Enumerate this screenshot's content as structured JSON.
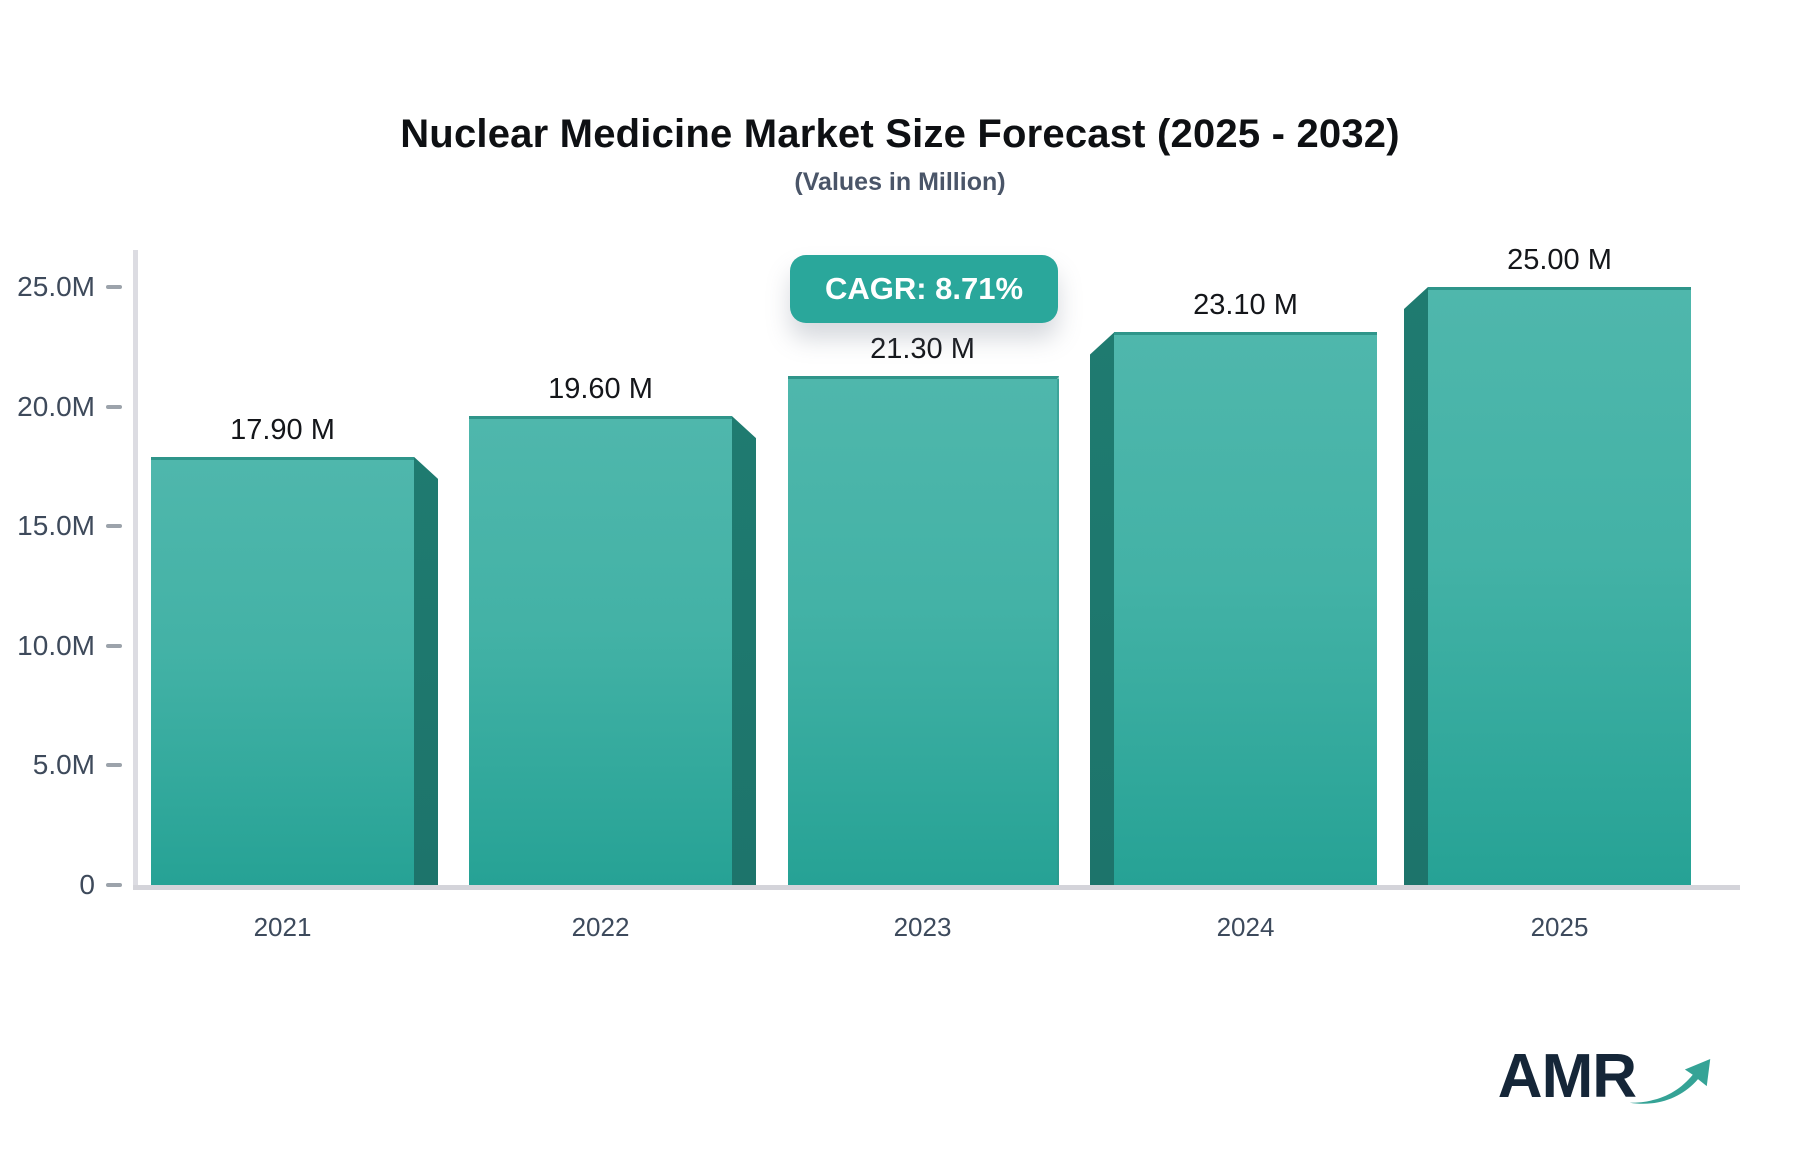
{
  "page": {
    "background": "#ffffff"
  },
  "chart_data": {
    "type": "bar",
    "title": "Nuclear Medicine Market Size Forecast (2025 - 2032)",
    "subtitle": "(Values in Million)",
    "badge_label": "CAGR: 8.71%",
    "categories": [
      "2021",
      "2022",
      "2023",
      "2024",
      "2025"
    ],
    "values": [
      17.9,
      19.6,
      21.3,
      23.1,
      25.0
    ],
    "value_labels": [
      "17.90 M",
      "19.60 M",
      "21.30 M",
      "23.10 M",
      "25.00 M"
    ],
    "unit": "Million",
    "ylim": [
      0,
      25
    ],
    "y_ticks": [
      {
        "label": "25.0M",
        "value": 25
      },
      {
        "label": "20.0M",
        "value": 20
      },
      {
        "label": "15.0M",
        "value": 15
      },
      {
        "label": "10.0M",
        "value": 10
      },
      {
        "label": "5.0M",
        "value": 5
      },
      {
        "label": "0",
        "value": 0
      }
    ],
    "grid": false,
    "legend": null,
    "bar_style": "3d-bevel",
    "colors": {
      "bar_top": "#4fb7ac",
      "bar_bottom": "#26a295",
      "bar_side": "#1f7b70",
      "bar_cap": "#2f958a",
      "badge_bg": "#2aa79b",
      "badge_text": "#ffffff",
      "axis_text": "#3e4a5b",
      "title_text": "#0e1013",
      "subtitle_text": "#4a5568",
      "axis_line": "#dcdce2",
      "tick_dash": "#9ca3ab",
      "logo_text": "#152638",
      "logo_arrow": "#35a396"
    }
  },
  "logo": {
    "text": "AMR",
    "icon": "growth-arrow-icon"
  }
}
